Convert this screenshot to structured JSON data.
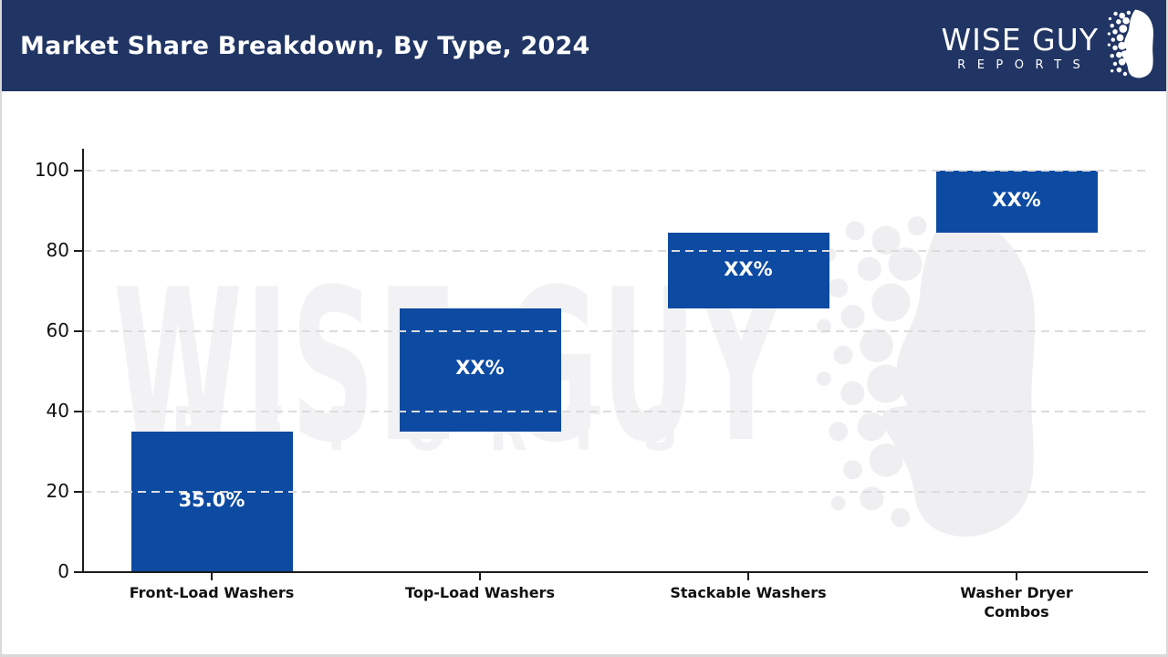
{
  "header": {
    "title": "Market Share Breakdown, By Type, 2024",
    "bg_color": "#213564",
    "logo": {
      "line1": "WISE GUY",
      "line2": "REPORTS"
    }
  },
  "watermark": {
    "line1": "WISE GUY",
    "line2": "REPORTS"
  },
  "chart_data": {
    "type": "bar",
    "subtype": "floating-waterfall",
    "title": "Market Share Breakdown, By Type, 2024",
    "categories": [
      "Front-Load Washers",
      "Top-Load Washers",
      "Stackable Washers",
      "Washer Dryer\nCombos"
    ],
    "series": [
      {
        "name": "Market Share",
        "segments": [
          {
            "start": 0,
            "end": 35.0,
            "label": "35.0%"
          },
          {
            "start": 35.0,
            "end": 65.7,
            "label": "XX%"
          },
          {
            "start": 65.7,
            "end": 84.5,
            "label": "XX%"
          },
          {
            "start": 84.5,
            "end": 100.0,
            "label": "XX%"
          }
        ]
      }
    ],
    "values": [
      35.0,
      30.7,
      18.8,
      15.5
    ],
    "bar_labels": [
      "35.0%",
      "XX%",
      "XX%",
      "XX%"
    ],
    "yticks": [
      0,
      20,
      40,
      60,
      80,
      100
    ],
    "ylim": [
      0,
      105
    ],
    "xlabel": "",
    "ylabel": "",
    "grid": "horizontal-dashed",
    "grid_over_bars": true,
    "legend": "none",
    "bar_color": "#0d4aa2",
    "label_color": "#ffffff",
    "axis_color": "#1c1c1c",
    "grid_color": "#dcdcdc"
  }
}
